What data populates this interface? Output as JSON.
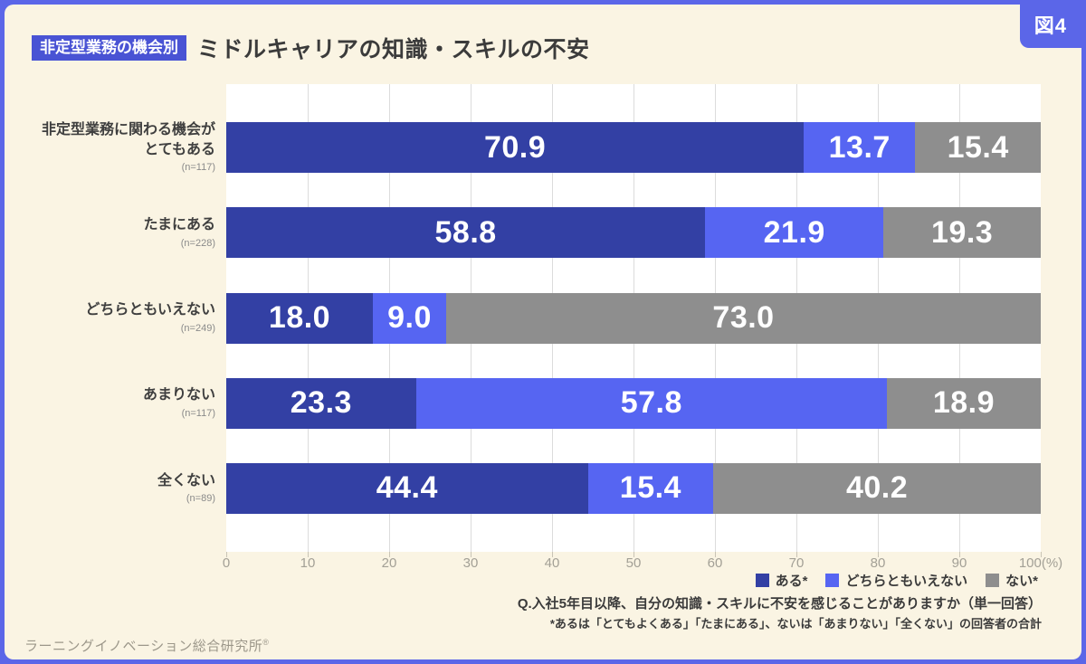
{
  "figure_tag": "図4",
  "header": {
    "category_badge": "非定型業務の機会別",
    "title": "ミドルキャリアの知識・スキルの不安"
  },
  "chart_data": {
    "type": "bar",
    "orientation": "horizontal",
    "stacked": true,
    "unit": "%",
    "xlim": [
      0,
      100
    ],
    "x_ticks": [
      "0",
      "10",
      "20",
      "30",
      "40",
      "50",
      "60",
      "70",
      "80",
      "90",
      "100(%)"
    ],
    "grid": true,
    "legend_position": "bottom-right",
    "series": [
      {
        "name": "ある*",
        "color": "#3340a4"
      },
      {
        "name": "どちらともいえない",
        "color": "#5665f2"
      },
      {
        "name": "ない*",
        "color": "#8e8e8e"
      }
    ],
    "rows": [
      {
        "label_lines": [
          "非定型業務に関わる機会が",
          "とてもある"
        ],
        "n": "(n=117)",
        "values": [
          70.9,
          13.7,
          15.4
        ]
      },
      {
        "label_lines": [
          "たまにある"
        ],
        "n": "(n=228)",
        "values": [
          58.8,
          21.9,
          19.3
        ]
      },
      {
        "label_lines": [
          "どちらともいえない"
        ],
        "n": "(n=249)",
        "values": [
          18.0,
          9.0,
          73.0
        ]
      },
      {
        "label_lines": [
          "あまりない"
        ],
        "n": "(n=117)",
        "values": [
          23.3,
          57.8,
          18.9
        ]
      },
      {
        "label_lines": [
          "全くない"
        ],
        "n": "(n=89)",
        "values": [
          44.4,
          15.4,
          40.2
        ]
      }
    ]
  },
  "footnotes": {
    "question": "Q.入社5年目以降、自分の知識・スキルに不安を感じることがありますか（単一回答）",
    "note": "*あるは「とてもよくある」「たまにある」、ないは「あまりない」「全くない」の回答者の合計"
  },
  "source": "ラーニングイノベーション総合研究所",
  "source_mark": "®",
  "colors": {
    "frame": "#5b66e8",
    "background": "#faf4e3",
    "badge": "#4953d4",
    "plot_background": "#ffffff",
    "gridline": "#dcdcdc"
  }
}
